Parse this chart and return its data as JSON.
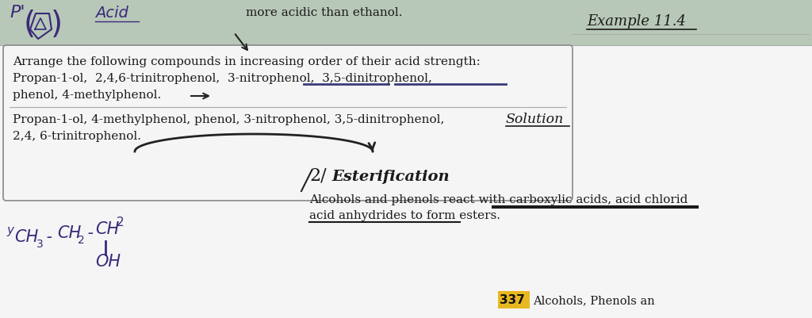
{
  "bg_top": "#b8c8b8",
  "bg_main": "#e8e8e8",
  "bg_box": "#f0f0f0",
  "bg_white": "#f5f5f5",
  "top_text": "more acidic than ethanol.",
  "example_label": "Example 11.4",
  "line1": "Arrange the following compounds in increasing order of their acid strength:",
  "line2": "Propan-1-ol,  2,4,6-trinitrophenol,  3-nitrophenol,  3,5-dinitrophenol,",
  "line3": "phenol, 4-methylphenol.",
  "sol_line1": "Propan-1-ol, 4-methylphenol, phenol, 3-nitrophenol, 3,5-dinitrophenol,",
  "sol_line2": "2,4, 6-trinitrophenol.",
  "solution_label": "Solution",
  "section2_title": "Esterification",
  "section2_num": "2/",
  "section2_text1": "Alcohols and phenols react with carboxylic acids, acid chlorid",
  "section2_text2": "acid anhydrides to form esters.",
  "page_num": "337",
  "page_num_label": "Alcohols, Phenols an",
  "hand_color": "#3a2a7a",
  "underline_color": "#3a3a7a",
  "box_border_color": "#888888",
  "text_color": "#1a1a1a",
  "arrow_color": "#222222",
  "yellow_bg": "#e8b820",
  "page_num_text_color": "#111111"
}
